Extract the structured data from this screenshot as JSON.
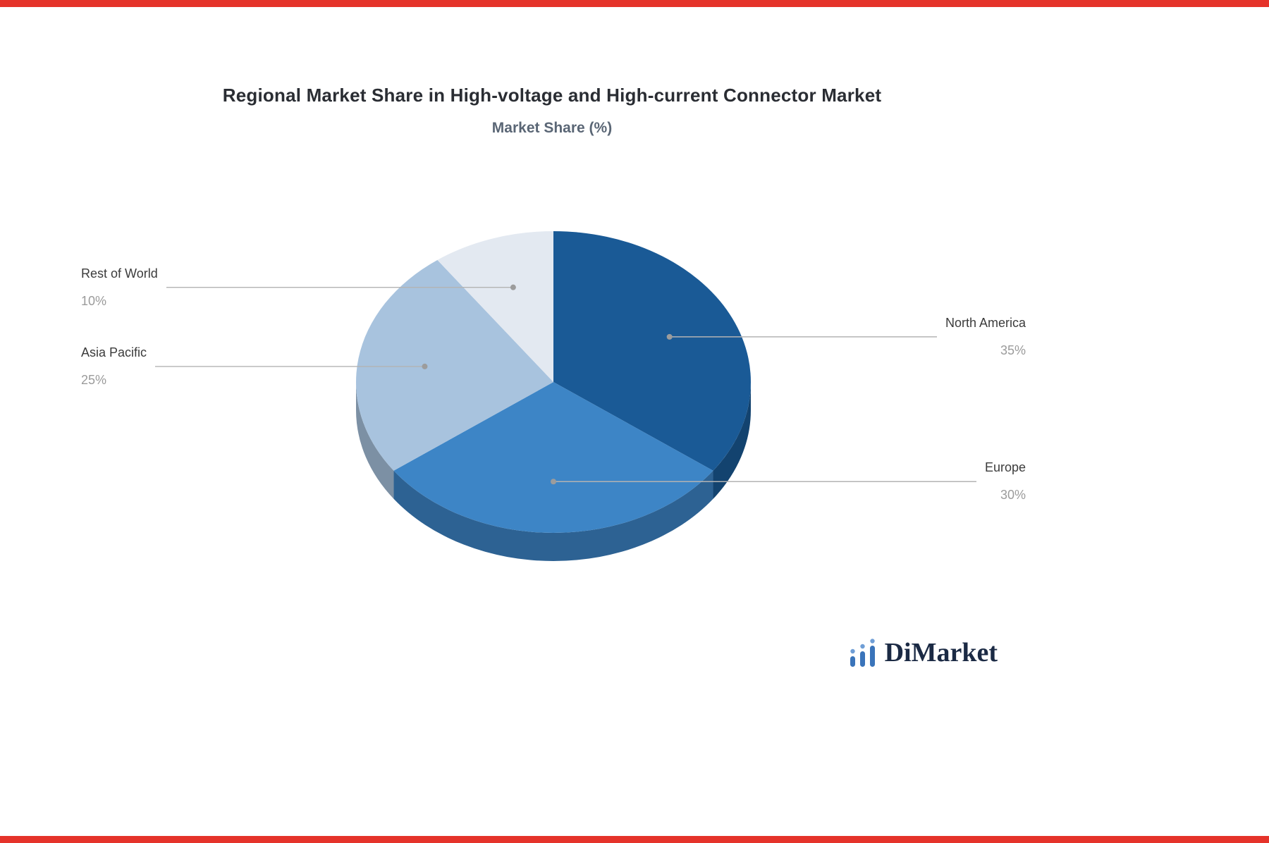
{
  "page": {
    "background": "#ffffff",
    "accent_bar_color": "#e5332a"
  },
  "header": {
    "title": "Regional Market Share in High-voltage and High-current Connector Market",
    "subtitle": "Market Share (%)"
  },
  "chart_data": {
    "type": "pie",
    "title": "Regional Market Share in High-voltage and High-current Connector Market",
    "subtitle": "Market Share (%)",
    "unit": "%",
    "start_angle_deg": -90,
    "direction": "clockwise",
    "effect": "3d-depth",
    "legend_position": "callout-labels",
    "label_line_color": "#b3b3b3",
    "label_dot_color": "#9c9c9c",
    "series": [
      {
        "label": "North America",
        "value": 35,
        "display": "35%",
        "color": "#1a5a96"
      },
      {
        "label": "Europe",
        "value": 30,
        "display": "30%",
        "color": "#3d85c6"
      },
      {
        "label": "Asia Pacific",
        "value": 25,
        "display": "25%",
        "color": "#a8c3de"
      },
      {
        "label": "Rest of World",
        "value": 10,
        "display": "10%",
        "color": "#e3e9f1"
      }
    ]
  },
  "branding": {
    "logo_text": "DiMarket",
    "logo_icon": "bar-chart-dots-icon",
    "logo_text_color": "#1b2a44",
    "logo_icon_color": "#3a74ba"
  }
}
